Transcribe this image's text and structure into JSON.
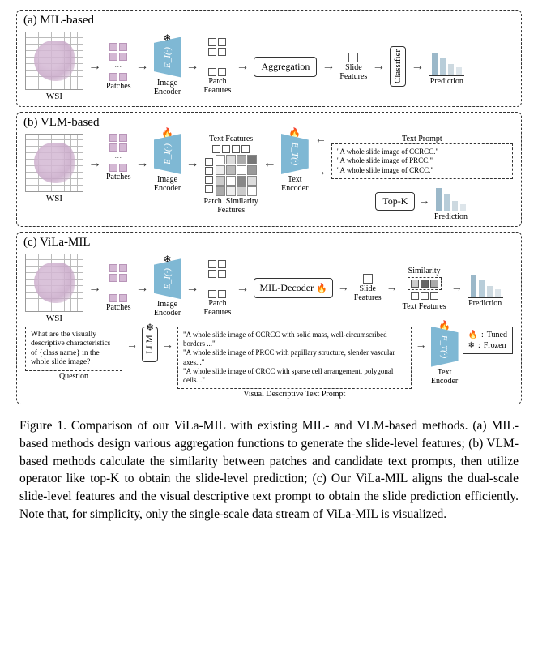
{
  "panels": {
    "a": {
      "label": "(a) MIL-based",
      "aggregation": "Aggregation",
      "classifier": "Classifier"
    },
    "b": {
      "label": "(b) VLM-based",
      "text_features": "Text Features",
      "sim_features": "Patch  Similarity\nFeatures",
      "topk": "Top-K",
      "text_prompt_title": "Text Prompt",
      "prompts": [
        "\"A whole slide image of CCRCC.\"",
        "\"A whole slide image of PRCC.\"",
        "\"A whole slide image of CRCC.\""
      ]
    },
    "c": {
      "label": "(c) ViLa-MIL",
      "mil_decoder": "MIL-Decoder",
      "similarity": "Similarity",
      "slide_features": "Slide\nFeatures",
      "text_features_c": "Text Features",
      "question_title": "Question",
      "question": "What are the visually descriptive characteristics of {class name} in the whole slide image?",
      "llm": "LLM",
      "vdtp_title": "Visual Descriptive Text Prompt",
      "vdtps": [
        "\"A whole slide image of CCRCC with solid mass, well-circumscribed borders ...\"",
        "\"A whole slide image of PRCC with papillary structure, slender vascular axes...\"",
        "\"A whole slide image of CRCC with sparse cell arrangement, polygonal cells...\""
      ]
    }
  },
  "common": {
    "wsi": "WSI",
    "patches": "Patches",
    "image_encoder": "Image\nEncoder",
    "patch_features": "Patch\nFeatures",
    "ei": "E_I(·)",
    "et": "E_T(·)",
    "text_encoder": "Text\nEncoder",
    "slide_features": "Slide\nFeatures",
    "prediction": "Prediction"
  },
  "legend": {
    "tuned": "Tuned",
    "frozen": "Frozen"
  },
  "chart": {
    "bars_a": [
      28,
      22,
      14,
      10
    ],
    "bars_b": [
      28,
      20,
      12,
      8
    ],
    "bars_c": [
      28,
      22,
      14,
      10
    ],
    "bar_colors": [
      "#9bb8c9",
      "#b8cdd9",
      "#cdd9e0",
      "#dde5ea"
    ]
  },
  "sim_colors": [
    "#fff",
    "#ddd",
    "#aaa",
    "#777",
    "#eee",
    "#bbb",
    "#fff",
    "#999",
    "#ccc",
    "#fff",
    "#888",
    "#ddd",
    "#aaa",
    "#eee",
    "#ccc",
    "#fff"
  ],
  "caption": "Figure 1.  Comparison of our ViLa-MIL with existing MIL- and VLM-based methods. (a) MIL-based methods design various aggregation functions to generate the slide-level features; (b) VLM-based methods calculate the similarity between patches and candidate text prompts, then utilize operator like top-K to obtain the slide-level prediction; (c) Our ViLa-MIL aligns the dual-scale slide-level features and the visual descriptive text prompt to obtain the slide prediction efficiently. Note that, for simplicity, only the single-scale data stream of ViLa-MIL is visualized."
}
